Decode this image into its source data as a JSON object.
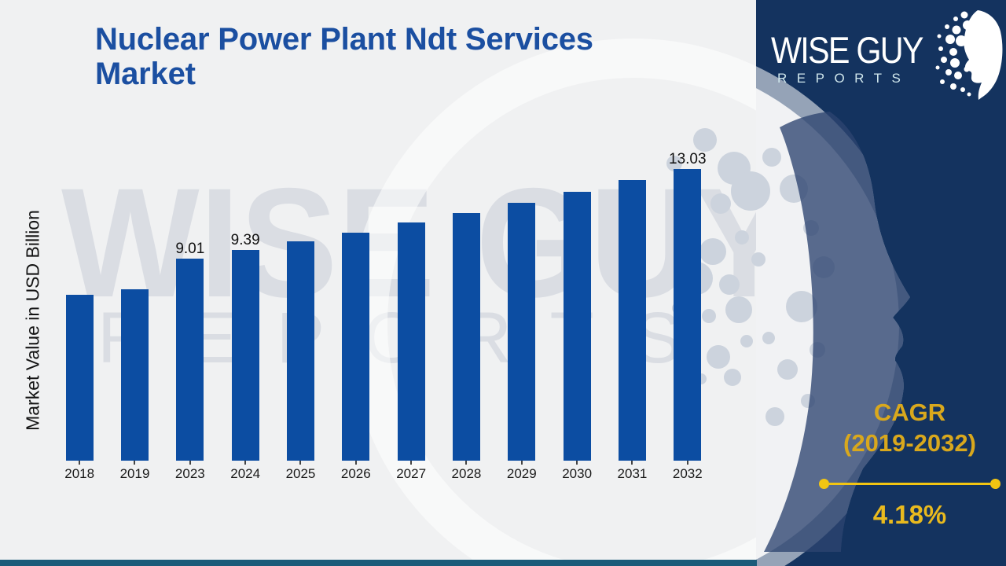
{
  "header": {
    "title": "Nuclear Power Plant Ndt Services Market"
  },
  "watermark": {
    "line1": "WISE GUY",
    "line2": "REPORTS"
  },
  "brand": {
    "wordmark": "WISE GUY",
    "reports": "REPORTS"
  },
  "cagr": {
    "label": "CAGR",
    "range": "(2019-2032)",
    "value": "4.18%"
  },
  "chart_data": {
    "type": "bar",
    "title": "Nuclear Power Plant Ndt Services Market",
    "xlabel": "",
    "ylabel": "Market Value in USD Billion",
    "categories": [
      "2018",
      "2019",
      "2023",
      "2024",
      "2025",
      "2026",
      "2027",
      "2028",
      "2029",
      "2030",
      "2031",
      "2032"
    ],
    "values": [
      7.4,
      7.65,
      9.01,
      9.39,
      9.78,
      10.19,
      10.62,
      11.06,
      11.52,
      12.01,
      12.51,
      13.03
    ],
    "value_labels": {
      "2023": "9.01",
      "2024": "9.39",
      "2032": "13.03"
    },
    "ylim": [
      0,
      14.5
    ],
    "grid": false,
    "legend": null,
    "bar_color": "#0c4da2"
  },
  "colors": {
    "background": "#f0f1f2",
    "title_text": "#1b4fa1",
    "bar": "#0c4da2",
    "panel_navy": "#14335f",
    "face_highlight": "rgba(45,68,111,0.78)",
    "gold_text": "#d9a81d",
    "gold_rate": "#e9ba1e",
    "gold_line": "#f2c512",
    "teal_strip": "#1a5b79",
    "watermark_gray": "#dadde3",
    "logo_reports_text": "#cfe6ec"
  }
}
